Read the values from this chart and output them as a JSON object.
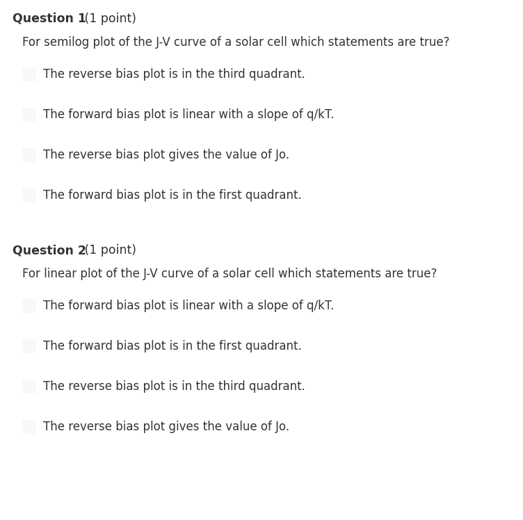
{
  "background_color": "#ffffff",
  "q1_title_bold": "Question 1",
  "q1_title_normal": " (1 point)",
  "q1_body": "For semilog plot of the J-V curve of a solar cell which statements are true?",
  "q1_options": [
    "The reverse bias plot is in the third quadrant.",
    "The forward bias plot is linear with a slope of q/kT.",
    "The reverse bias plot gives the value of Jo.",
    "The forward bias plot is in the first quadrant."
  ],
  "q2_title_bold": "Question 2",
  "q2_title_normal": " (1 point)",
  "q2_body": "For linear plot of the J-V curve of a solar cell which statements are true?",
  "q2_options": [
    "The forward bias plot is linear with a slope of q/kT.",
    "The forward bias plot is in the first quadrant.",
    "The reverse bias plot is in the third quadrant.",
    "The reverse bias plot gives the value of Jo."
  ],
  "text_color": "#333333",
  "checkbox_edge_color": "#bbbbbb",
  "checkbox_face_color": "#f8f8f8",
  "title_fontsize": 12.5,
  "body_fontsize": 12.0,
  "option_fontsize": 12.0,
  "fig_width": 7.52,
  "fig_height": 7.48,
  "dpi": 100
}
